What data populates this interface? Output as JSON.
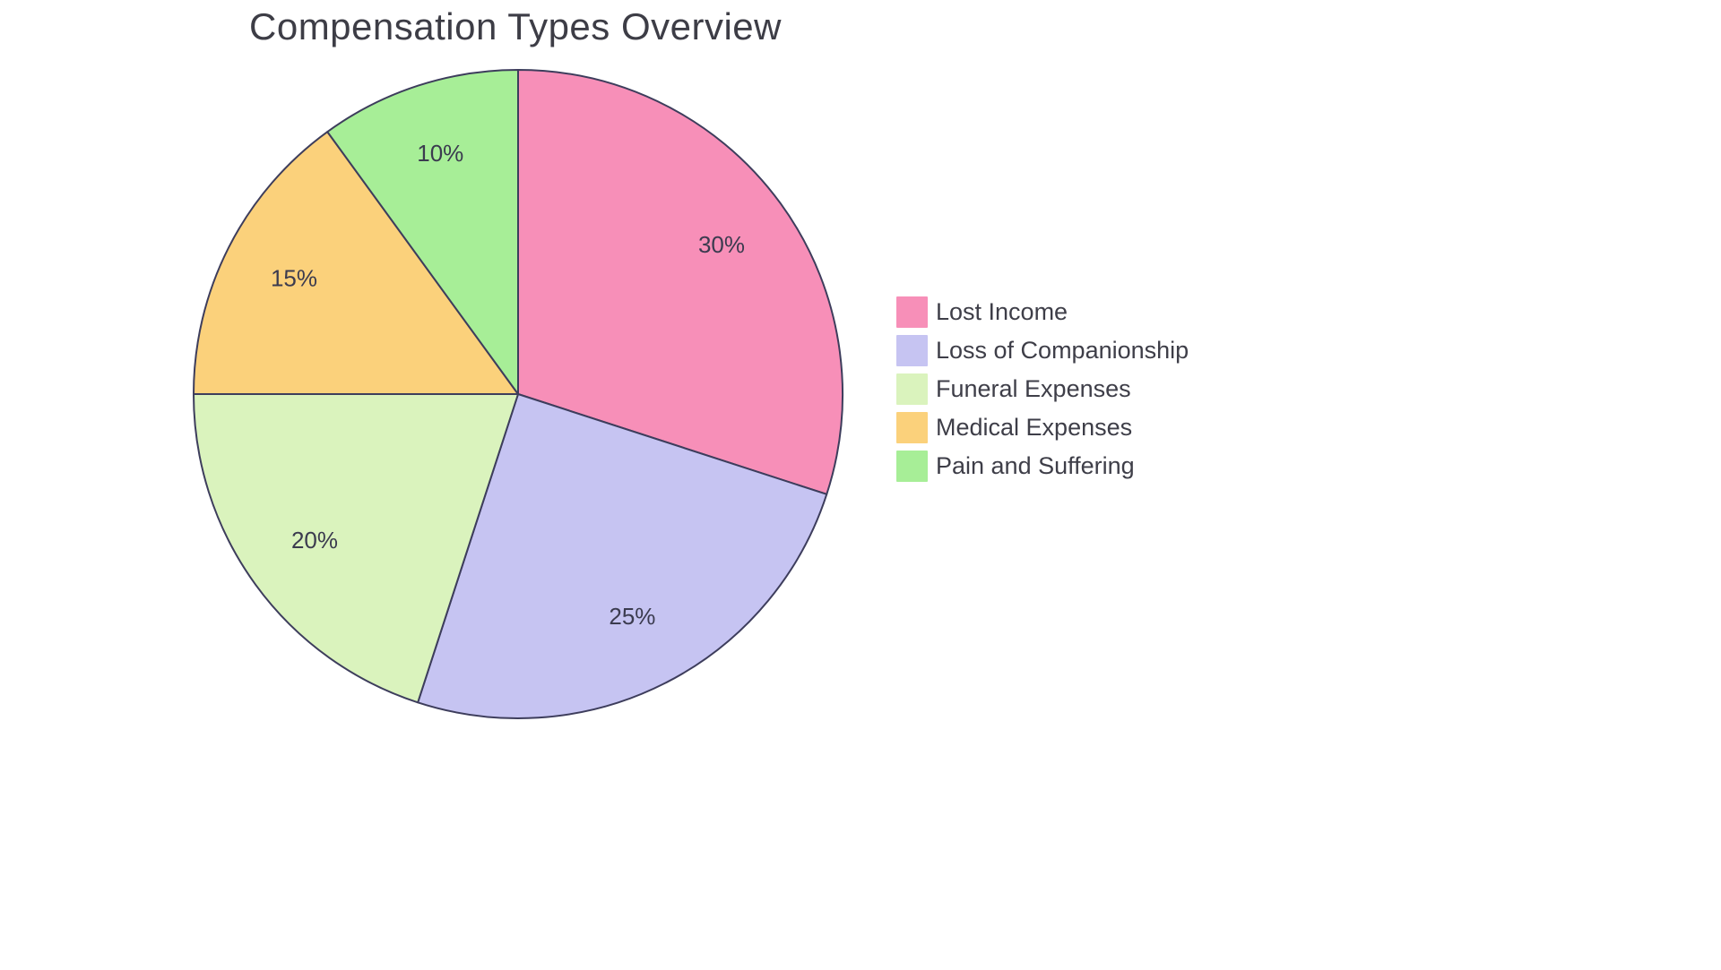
{
  "chart_data": {
    "type": "pie",
    "title": "Compensation Types Overview",
    "labels": [
      "Lost Income",
      "Loss of Companionship",
      "Funeral Expenses",
      "Medical Expenses",
      "Pain and Suffering"
    ],
    "values": [
      30,
      25,
      20,
      15,
      10
    ],
    "value_labels": [
      "30%",
      "25%",
      "20%",
      "15%",
      "10%"
    ],
    "colors": [
      "#F78FB8",
      "#C6C4F2",
      "#DAF3BD",
      "#FBD17B",
      "#A7EE97"
    ],
    "slice_stroke": "#3D3D5C",
    "label_color": "#3B3B4F",
    "legend_position": "right",
    "start_angle_deg": 0,
    "direction": "clockwise",
    "background": "#FFFFFF"
  }
}
